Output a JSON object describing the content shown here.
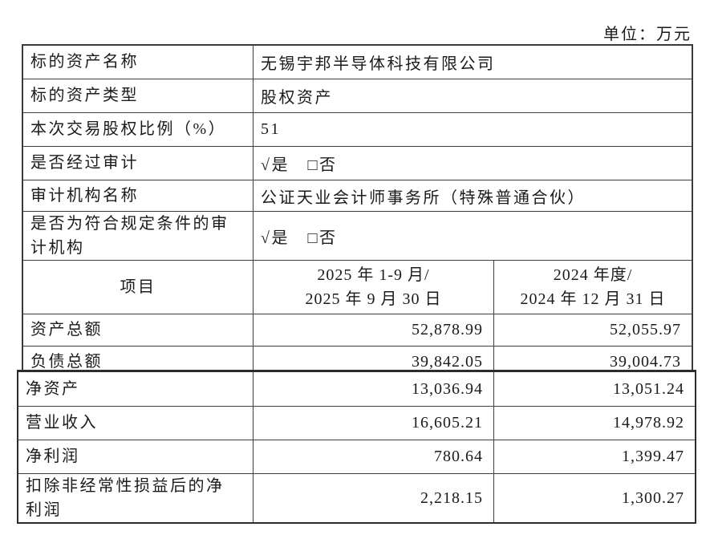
{
  "unit_label": "单位：万元",
  "info_rows": [
    {
      "label": "标的资产名称",
      "value": "无锡宇邦半导体科技有限公司"
    },
    {
      "label": "标的资产类型",
      "value": "股权资产"
    },
    {
      "label": "本次交易股权比例（%）",
      "value": "51"
    },
    {
      "label": "是否经过审计",
      "value": "√是　□否"
    },
    {
      "label": "审计机构名称",
      "value": "公证天业会计师事务所（特殊普通合伙）"
    },
    {
      "label": "是否为符合规定条件的审\n计机构",
      "value": "√是　□否"
    }
  ],
  "financial": {
    "header": {
      "item": "项目",
      "period1": "2025 年 1-9 月/\n2025 年 9 月 30 日",
      "period2": "2024 年度/\n2024 年 12 月 31 日"
    },
    "rows_upper": [
      {
        "item": "资产总额",
        "current": "52,878.99",
        "prior": "52,055.97"
      },
      {
        "item": "负债总额",
        "current": "39,842.05",
        "prior": "39,004.73"
      }
    ],
    "rows_lower": [
      {
        "item": "净资产",
        "current": "13,036.94",
        "prior": "13,051.24"
      },
      {
        "item": "营业收入",
        "current": "16,605.21",
        "prior": "14,978.92"
      },
      {
        "item": "净利润",
        "current": "780.64",
        "prior": "1,399.47"
      },
      {
        "item": "扣除非经常性损益后的净\n利润",
        "current": "2,218.15",
        "prior": "1,300.27"
      }
    ]
  }
}
